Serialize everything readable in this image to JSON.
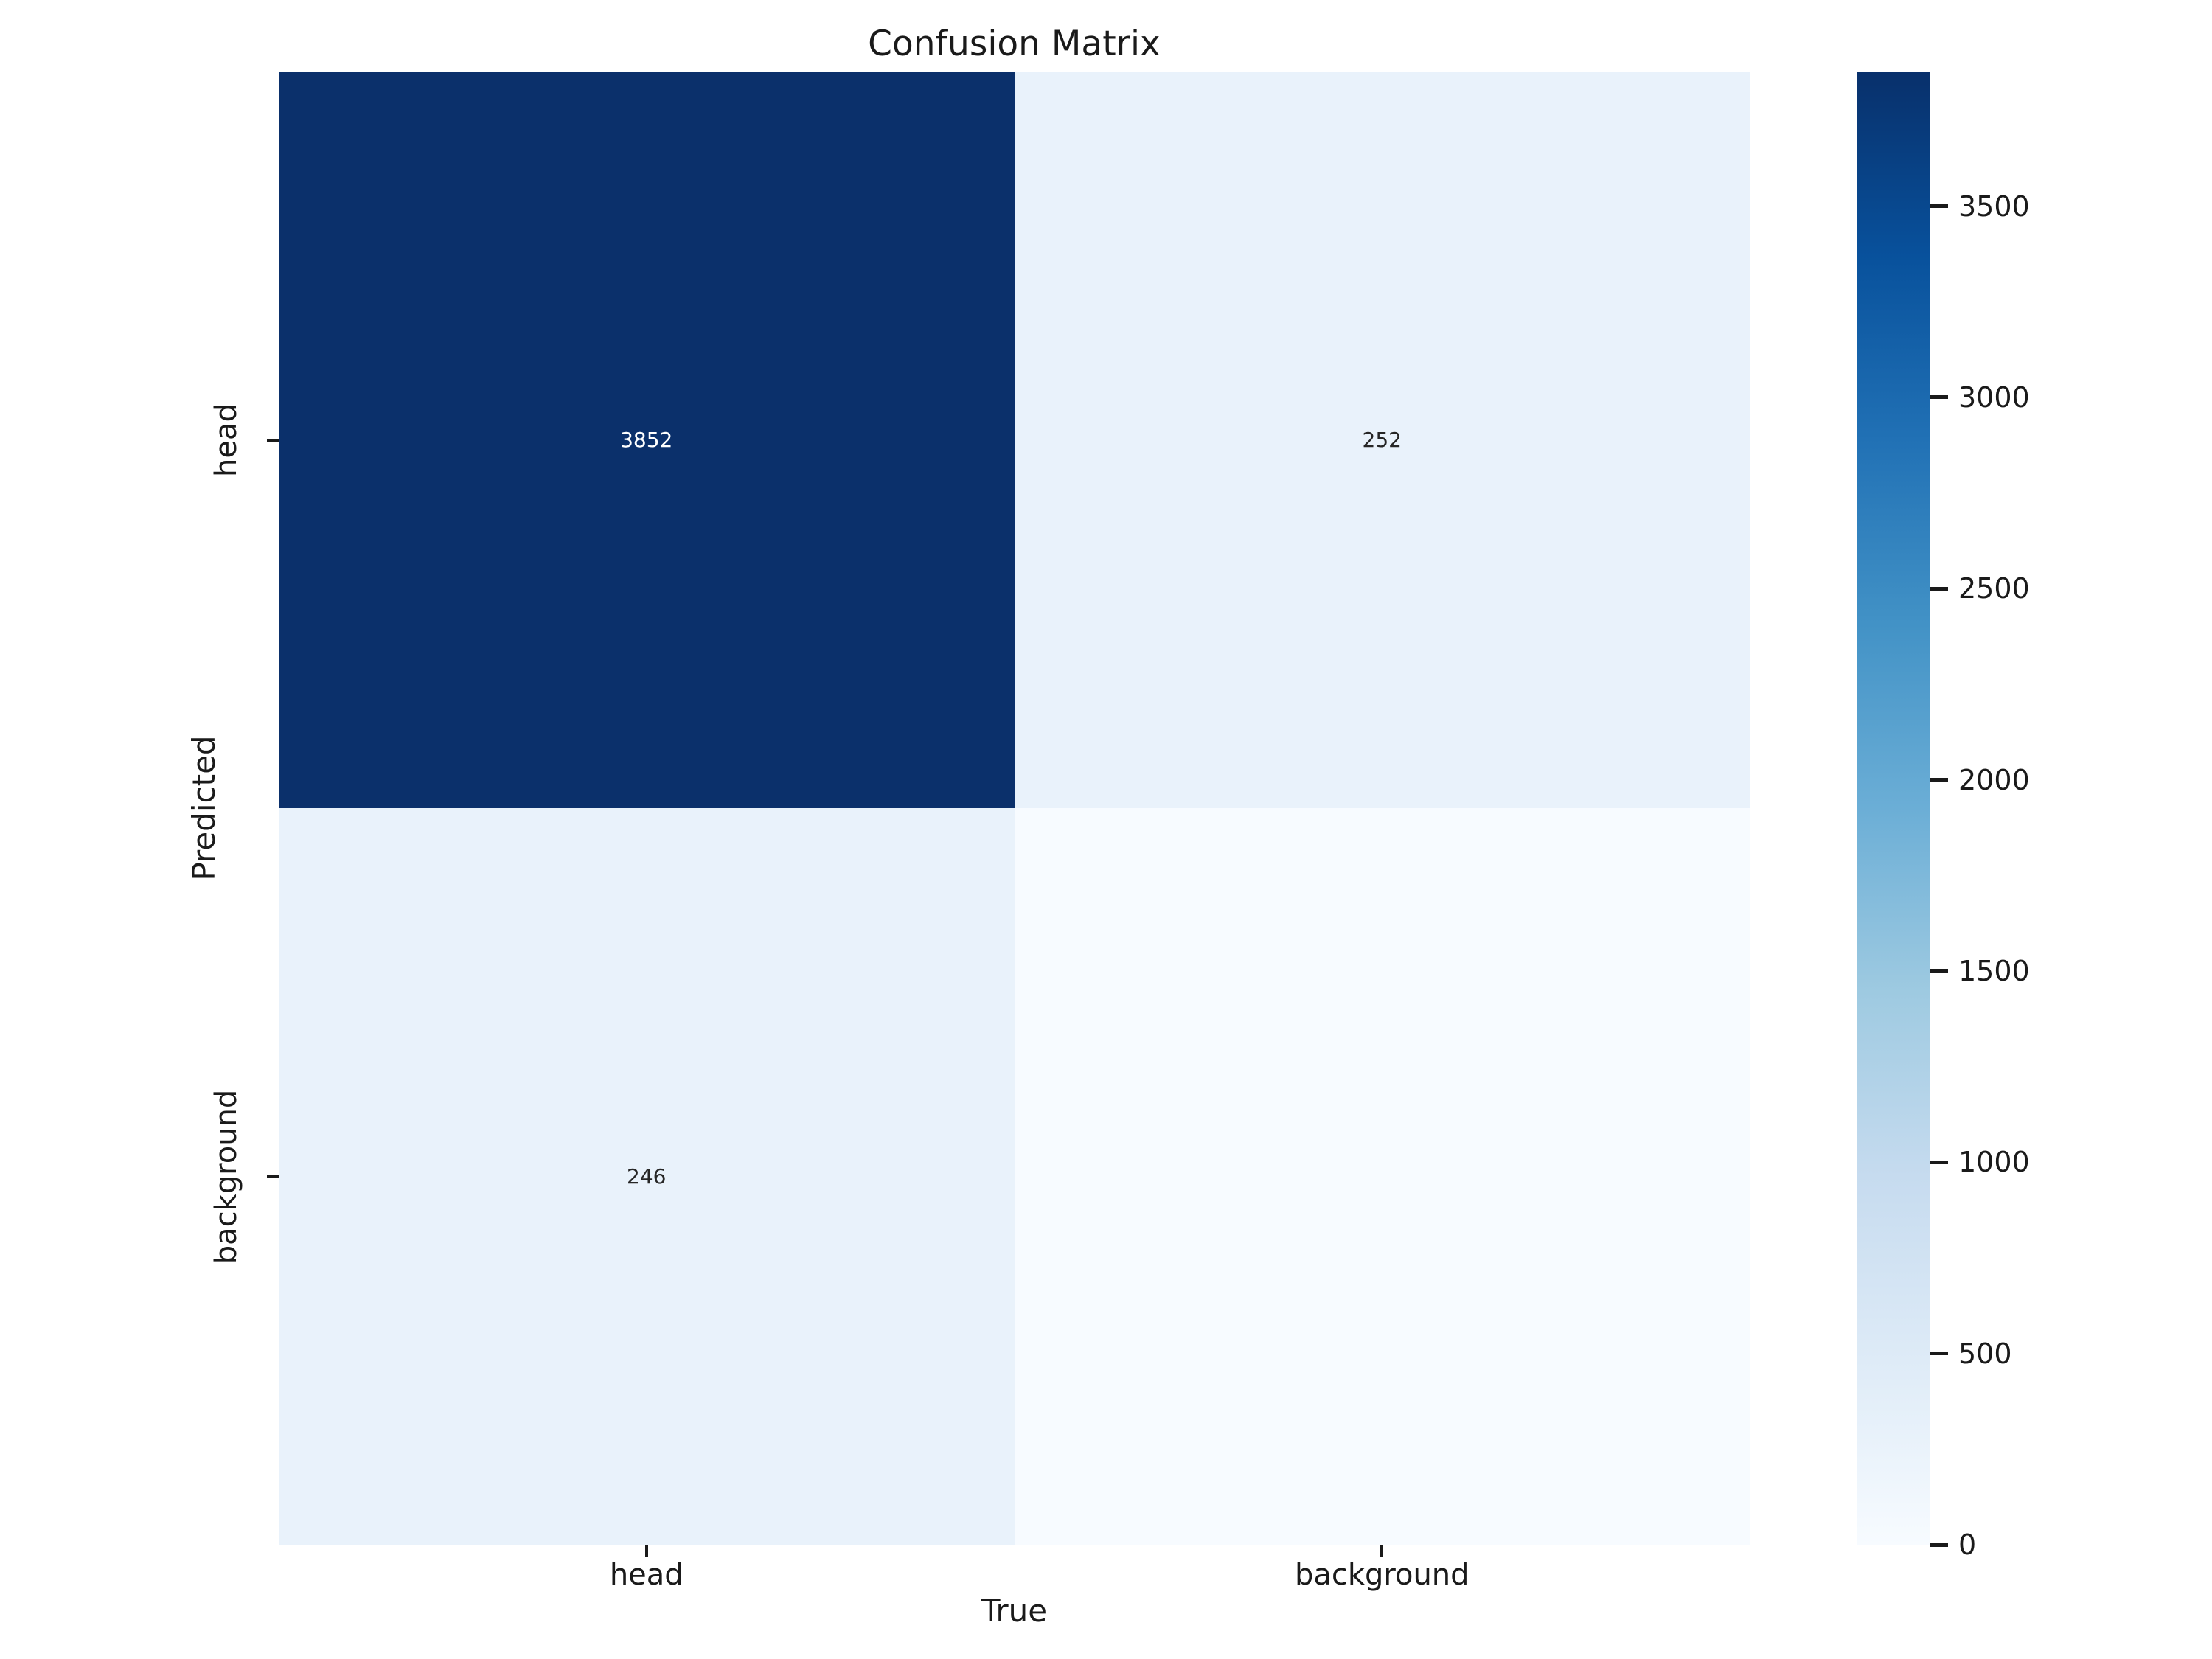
{
  "figure": {
    "background": "#ffffff",
    "text_color": "#1a1a1a"
  },
  "chart_data": {
    "type": "heatmap",
    "title": "Confusion Matrix",
    "xlabel": "True",
    "ylabel": "Predicted",
    "x_categories": [
      "head",
      "background"
    ],
    "y_categories": [
      "head",
      "background"
    ],
    "matrix": [
      [
        3852,
        252
      ],
      [
        246,
        0
      ]
    ],
    "annotations": [
      [
        "3852",
        "252"
      ],
      [
        "246",
        ""
      ]
    ],
    "cell_colors": [
      [
        "#0b306b",
        "#e9f2fb"
      ],
      [
        "#e9f2fb",
        "#f7fbff"
      ]
    ],
    "annotation_colors": [
      [
        "#ffffff",
        "#262626"
      ],
      [
        "#262626",
        "#262626"
      ]
    ],
    "colormap": "Blues",
    "vmin": 0,
    "vmax": 3852,
    "colorbar_ticks": [
      3500,
      3000,
      2500,
      2000,
      1500,
      1000,
      500,
      0
    ],
    "colorbar_gradient_top_to_bottom": [
      "#08306b",
      "#08519c",
      "#2171b5",
      "#4292c6",
      "#6baed6",
      "#9ecae1",
      "#c6dbef",
      "#deebf7",
      "#f7fbff"
    ],
    "legend_position": "right-colorbar",
    "grid": false
  }
}
